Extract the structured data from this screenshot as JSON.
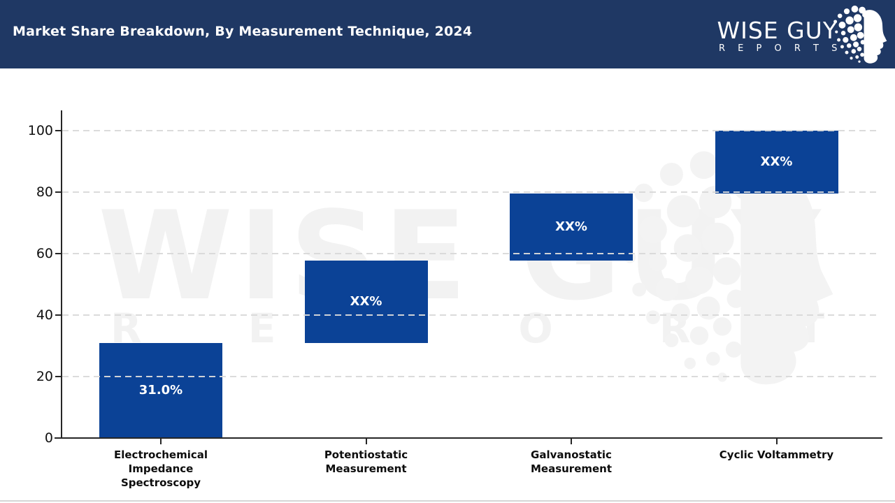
{
  "header": {
    "title": "Market Share Breakdown, By Measurement Technique, 2024",
    "logo": {
      "name": "WISE GUY",
      "subtitle": "R E P O R T S"
    }
  },
  "watermark": {
    "name": "WISE GUY",
    "subtitle": "R E P O R T S"
  },
  "chart_data": {
    "type": "bar",
    "subtype": "waterfall",
    "title": "Market Share Breakdown, By Measurement Technique, 2024",
    "xlabel": "",
    "ylabel": "",
    "categories": [
      "Electrochemical\nImpedance\nSpectroscopy",
      "Potentiostatic\nMeasurement",
      "Galvanostatic\nMeasurement",
      "Cyclic Voltammetry"
    ],
    "segments": [
      {
        "category": "Electrochemical Impedance Spectroscopy",
        "label": "31.0%",
        "start": 0,
        "end": 31.0,
        "value": 31.0
      },
      {
        "category": "Potentiostatic Measurement",
        "label": "XX%",
        "start": 31.0,
        "end": 57.7,
        "value": 26.7
      },
      {
        "category": "Galvanostatic Measurement",
        "label": "XX%",
        "start": 57.7,
        "end": 79.6,
        "value": 21.9
      },
      {
        "category": "Cyclic Voltammetry",
        "label": "XX%",
        "start": 79.6,
        "end": 100.0,
        "value": 20.4
      }
    ],
    "yticks": [
      0,
      20,
      40,
      60,
      80,
      100
    ],
    "ylim": [
      0,
      107
    ],
    "bar_color": "#0b4296",
    "grid": "horizontal-dashed",
    "legend": "none"
  },
  "colors": {
    "header_bg": "#1f3864",
    "bar": "#0b4296",
    "axis": "#262626",
    "gridline": "#d9d9d9",
    "watermark": "#f2f2f2",
    "label_text": "#ffffff"
  }
}
